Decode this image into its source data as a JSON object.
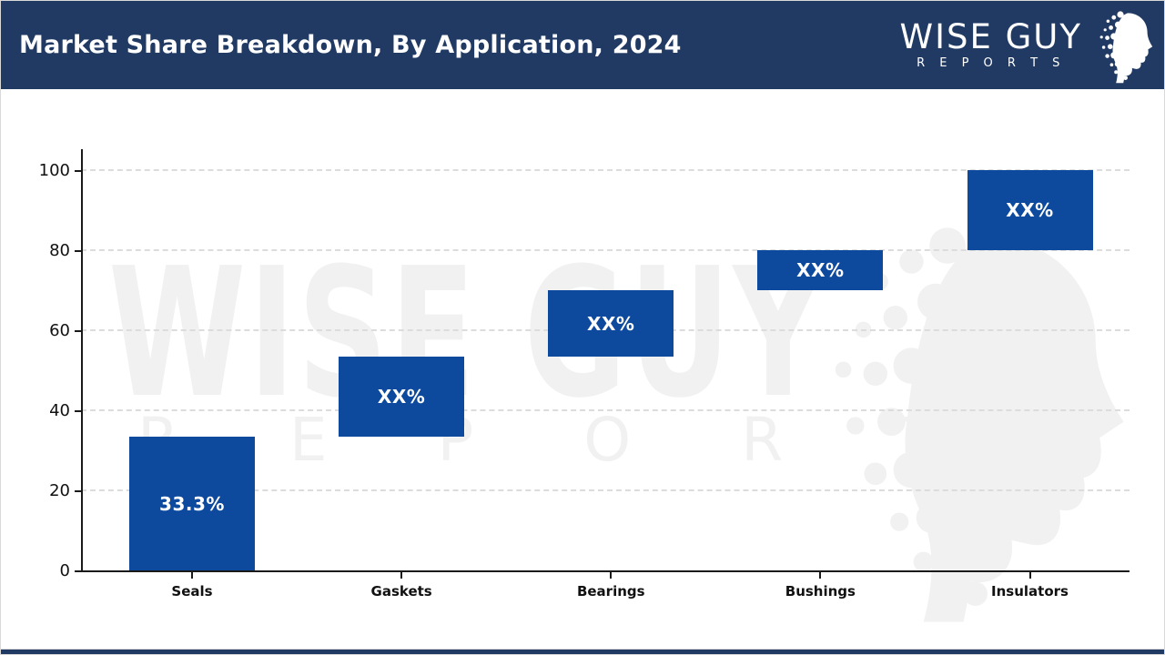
{
  "header": {
    "title": "Market Share Breakdown, By Application, 2024",
    "brand": {
      "name": "WISE GUY",
      "tagline": "R E P O R T S"
    }
  },
  "watermark": {
    "line1": "WISE GUY",
    "line2": "R E P O R T S"
  },
  "chart_data": {
    "type": "bar",
    "subtype": "floating-waterfall",
    "title": "Market Share Breakdown, By Application, 2024",
    "categories": [
      "Seals",
      "Gaskets",
      "Bearings",
      "Bushings",
      "Insulators"
    ],
    "segments": [
      {
        "category": "Seals",
        "start": 0,
        "end": 33.3,
        "label": "33.3%"
      },
      {
        "category": "Gaskets",
        "start": 33.3,
        "end": 53.3,
        "label": "XX%"
      },
      {
        "category": "Bearings",
        "start": 53.3,
        "end": 70,
        "label": "XX%"
      },
      {
        "category": "Bushings",
        "start": 70,
        "end": 80,
        "label": "XX%"
      },
      {
        "category": "Insulators",
        "start": 80,
        "end": 100,
        "label": "XX%"
      }
    ],
    "yticks": [
      0,
      20,
      40,
      60,
      80,
      100
    ],
    "ylim": [
      0,
      105
    ],
    "xlabel": "",
    "ylabel": "",
    "grid": "horizontal-dashed",
    "legend": "none",
    "bar_color": "#0d4a9e",
    "bar_label_color": "#ffffff"
  },
  "colors": {
    "header_bg": "#213a63",
    "footer_bg": "#213a63",
    "bar": "#0d4a9e",
    "axis": "#1a1a1a",
    "grid": "#dcdcdc",
    "watermark": "#f1f1f1",
    "text": "#111111"
  }
}
